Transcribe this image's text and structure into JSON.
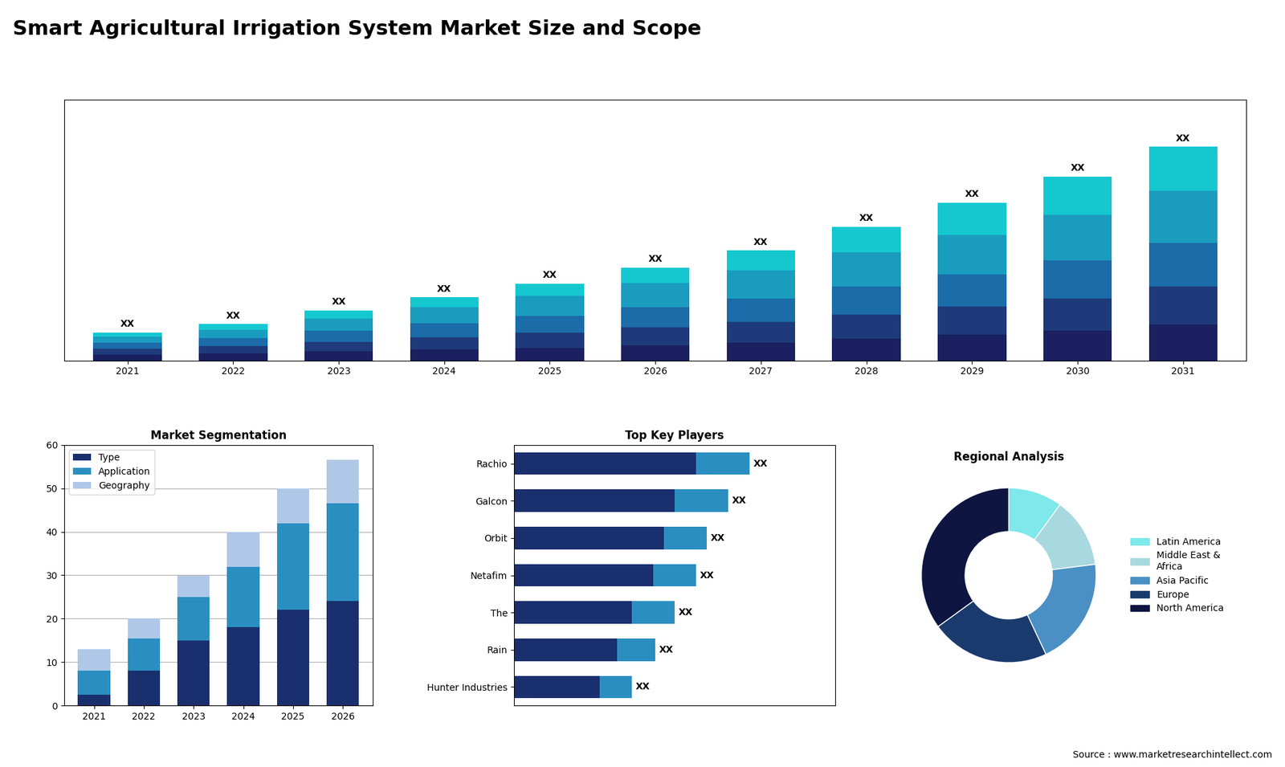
{
  "title": "Smart Agricultural Irrigation System Market Size and Scope",
  "annotations": [
    "Source : www.marketresearchintellect.com"
  ],
  "chart_data": [
    {
      "type": "bar",
      "stacked": true,
      "tick_labels": "x",
      "categories": [
        "2021",
        "2022",
        "2023",
        "2024",
        "2025",
        "2026",
        "2027",
        "2028",
        "2029",
        "2030",
        "2031"
      ],
      "series": [
        {
          "color": "#1a2060",
          "values": [
            1.5,
            1.8,
            2.2,
            2.8,
            3.2,
            3.8,
            4.5,
            5.5,
            6.5,
            7.5,
            9.0
          ]
        },
        {
          "color": "#1e3a7a",
          "values": [
            1.5,
            1.8,
            2.5,
            3.0,
            3.8,
            4.5,
            5.2,
            6.0,
            7.0,
            8.0,
            9.5
          ]
        },
        {
          "color": "#1b6ca8",
          "values": [
            1.5,
            2.0,
            2.8,
            3.5,
            4.2,
            5.0,
            5.8,
            7.0,
            8.0,
            9.5,
            11.0
          ]
        },
        {
          "color": "#1a9cbf",
          "values": [
            1.5,
            2.0,
            3.0,
            4.0,
            5.0,
            6.0,
            7.0,
            8.5,
            10.0,
            11.5,
            13.0
          ]
        },
        {
          "color": "#15c8d0",
          "values": [
            1.0,
            1.5,
            2.0,
            2.5,
            3.0,
            4.0,
            5.0,
            6.5,
            8.0,
            9.5,
            11.0
          ]
        }
      ],
      "ylim": [
        0,
        65.27
      ],
      "annotations": [
        "XX",
        "XX",
        "XX",
        "XX",
        "XX",
        "XX",
        "XX",
        "XX",
        "XX",
        "XX",
        "XX"
      ]
    },
    {
      "type": "bar",
      "stacked": true,
      "title": "Market Segmentation",
      "categories": [
        "2021",
        "2022",
        "2023",
        "2024",
        "2025",
        "2026"
      ],
      "series": [
        {
          "name": "Type",
          "color": "#1a2f6e",
          "values": [
            2.5,
            8.0,
            15.0,
            18.0,
            22.0,
            24.0
          ]
        },
        {
          "name": "Application",
          "color": "#2a8fc0",
          "values": [
            5.5,
            7.5,
            10.0,
            14.0,
            20.0,
            22.5
          ]
        },
        {
          "name": "Geography",
          "color": "#b0c8e8",
          "values": [
            5.0,
            4.5,
            5.0,
            8.0,
            8.0,
            10.0
          ]
        }
      ],
      "ylim": [
        0,
        60
      ],
      "yticks": [
        0,
        10,
        20,
        30,
        40,
        50,
        60
      ],
      "grid": true,
      "legend": "upper left"
    },
    {
      "type": "bar",
      "stacked": true,
      "orientation": "horizontal",
      "title": "Top Key Players",
      "tick_labels": "y",
      "categories": [
        "Rachio",
        "Galcon",
        "Orbit",
        "Netafim",
        "The",
        "Rain",
        "Hunter Industries"
      ],
      "series": [
        {
          "color": "#1a2f6e",
          "values": [
            8.5,
            7.5,
            7.0,
            6.5,
            5.5,
            4.8,
            4.0
          ]
        },
        {
          "color": "#2a8fc0",
          "values": [
            2.5,
            2.5,
            2.0,
            2.0,
            2.0,
            1.8,
            1.5
          ]
        }
      ],
      "xlim": [
        0,
        15
      ],
      "annotations": [
        "XX",
        "XX",
        "XX",
        "XX",
        "XX",
        "XX",
        "XX"
      ]
    },
    {
      "type": "pie",
      "title": "Regional Analysis",
      "categories": [
        "Latin America",
        "Middle East &\nAfrica",
        "Asia Pacific",
        "Europe",
        "North America"
      ],
      "values": [
        10,
        13,
        20,
        22,
        35
      ],
      "colors": [
        "#7ee8ea",
        "#a8d8e0",
        "#4a90c4",
        "#1a3a6e",
        "#0d1540"
      ],
      "legend": "center left"
    }
  ]
}
